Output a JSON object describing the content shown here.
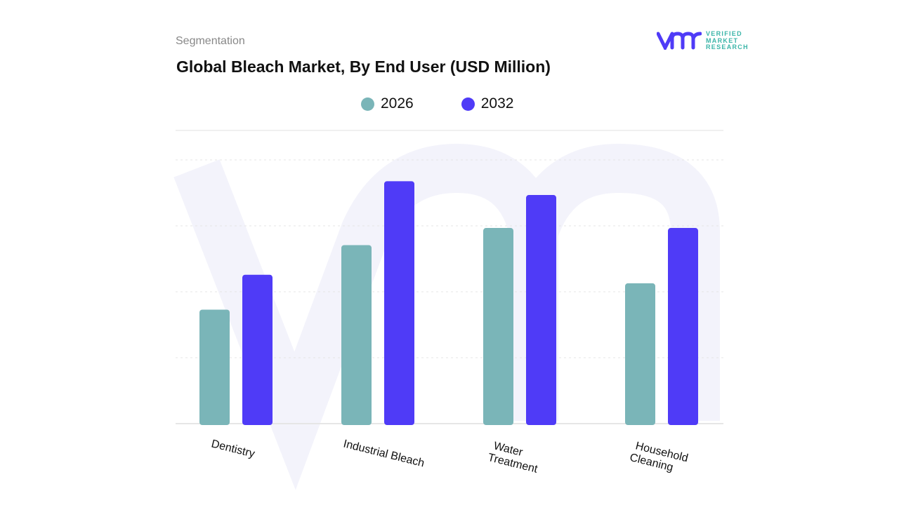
{
  "header": {
    "segment_label": "Segmentation",
    "logo_text": [
      "VERIFIED",
      "MARKET",
      "RESEARCH"
    ]
  },
  "chart_data": {
    "type": "bar",
    "title": "Global Bleach Market, By End User (USD Million)",
    "categories": [
      "Dentistry",
      "Industrial  Bleach",
      "Water Treatment",
      "Household Cleaning"
    ],
    "category_lines": [
      [
        "Dentistry"
      ],
      [
        "Industrial  Bleach"
      ],
      [
        "Water",
        "Treatment"
      ],
      [
        "Household",
        "Cleaning"
      ]
    ],
    "series": [
      {
        "name": "2026",
        "color": "#7ab5b8",
        "values": [
          1.73,
          2.71,
          2.97,
          2.13
        ]
      },
      {
        "name": "2032",
        "color": "#4f3bf7",
        "values": [
          2.26,
          3.68,
          3.47,
          2.97
        ]
      }
    ],
    "ylim": [
      0,
      4.45
    ],
    "grid": true,
    "legend": "top-center",
    "xlabel": "",
    "ylabel": ""
  }
}
